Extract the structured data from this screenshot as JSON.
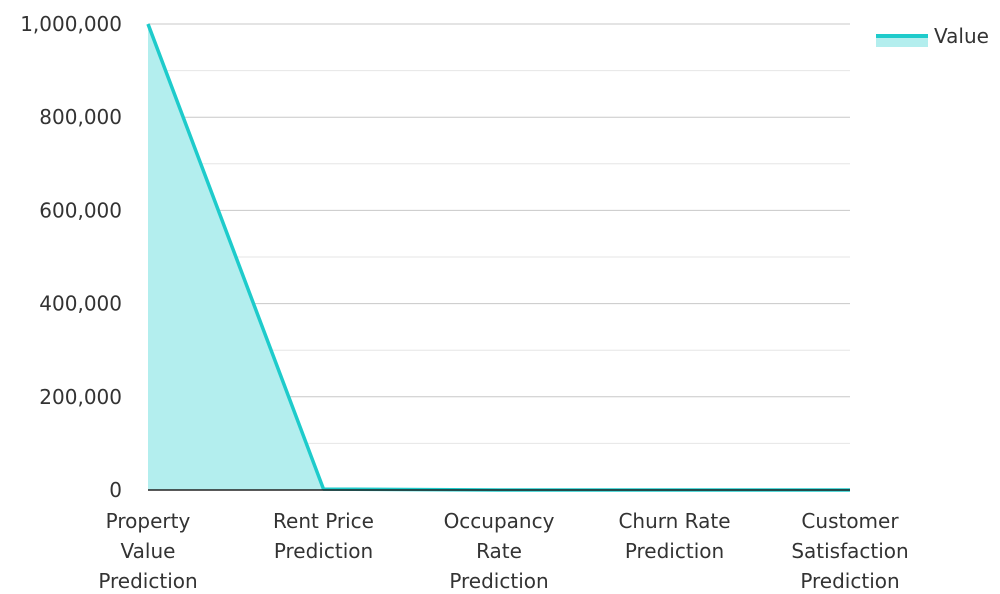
{
  "chart_data": {
    "type": "area",
    "categories": [
      [
        "Property",
        "Value",
        "Prediction"
      ],
      [
        "Rent Price",
        "Prediction"
      ],
      [
        "Occupancy",
        "Rate",
        "Prediction"
      ],
      [
        "Churn Rate",
        "Prediction"
      ],
      [
        "Customer",
        "Satisfaction",
        "Prediction"
      ]
    ],
    "series": [
      {
        "name": "Value",
        "values": [
          1000000,
          2000,
          100,
          50,
          10
        ]
      }
    ],
    "y_ticks": [
      "0",
      "200,000",
      "400,000",
      "600,000",
      "800,000",
      "1,000,000"
    ],
    "ylim": [
      0,
      1000000
    ],
    "grid": true,
    "legend_position": "top-right",
    "line_color": "#1ecbcb",
    "fill_color": "#b3eeee"
  }
}
